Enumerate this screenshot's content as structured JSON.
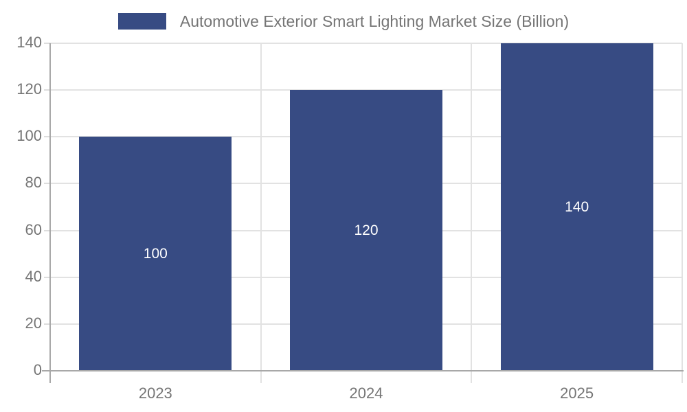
{
  "legend": {
    "label": "Automotive Exterior Smart Lighting Market Size (Billion)",
    "swatch_color": "#374B83"
  },
  "chart_data": {
    "type": "bar",
    "title": "Automotive Exterior Smart Lighting Market Size (Billion)",
    "categories": [
      "2023",
      "2024",
      "2025"
    ],
    "values": [
      100,
      120,
      140
    ],
    "bar_labels": [
      "100",
      "120",
      "140"
    ],
    "xlabel": "",
    "ylabel": "",
    "ylim": [
      0,
      140
    ],
    "yticks": [
      0,
      20,
      40,
      60,
      80,
      100,
      120,
      140
    ],
    "grid": true,
    "legend_position": "top",
    "colors": {
      "bar": "#374B83",
      "bar_label": "#ffffff",
      "axis_text": "#757575",
      "gridline": "#e2e2e2",
      "axis_line": "#a8a8a8",
      "background": "#ffffff"
    }
  }
}
